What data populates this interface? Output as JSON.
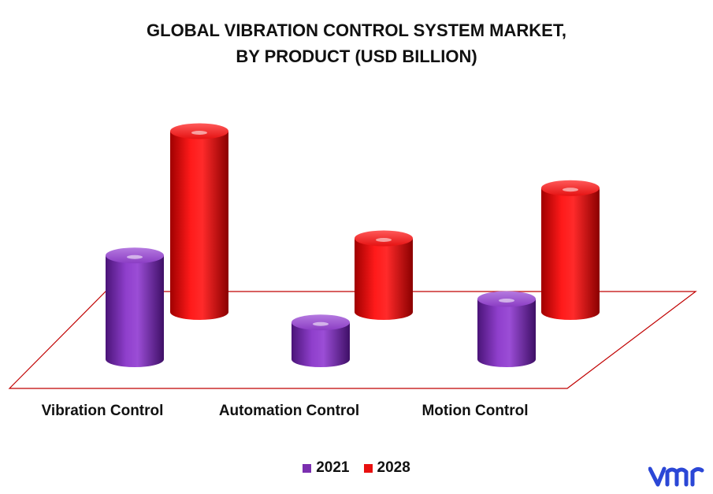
{
  "chart_data": {
    "type": "bar",
    "title_lines": [
      "GLOBAL VIBRATION CONTROL SYSTEM MARKET,",
      "BY PRODUCT (USD BILLION)"
    ],
    "categories": [
      "Vibration Control",
      "Automation Control",
      "Motion Control"
    ],
    "series": [
      {
        "name": "2021",
        "color": "#7B2FB0",
        "values": [
          1.55,
          0.55,
          0.9
        ]
      },
      {
        "name": "2028",
        "color": "#E8100F",
        "values": [
          2.7,
          1.1,
          1.85
        ]
      }
    ],
    "ylim": [
      0,
      3
    ],
    "grid": false,
    "legend_position": "bottom-center"
  },
  "logo": {
    "icon": "vmr-logo-icon",
    "color": "#2B47D6"
  }
}
